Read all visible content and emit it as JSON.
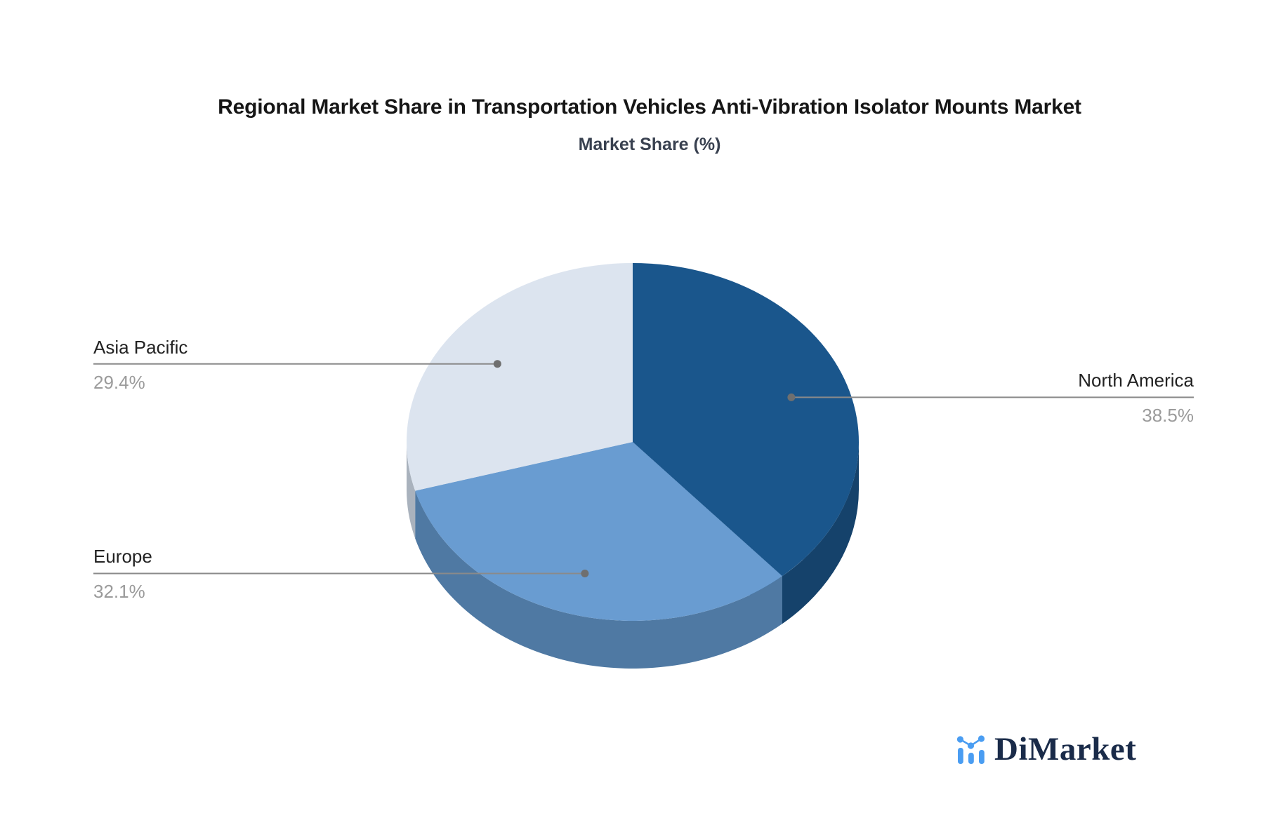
{
  "title": "Regional Market Share in Transportation Vehicles Anti-Vibration Isolator Mounts Market",
  "subtitle": "Market Share (%)",
  "chart_data": {
    "type": "pie",
    "style": "3d",
    "title": "Regional Market Share in Transportation Vehicles Anti-Vibration Isolator Mounts Market",
    "subtitle": "Market Share (%)",
    "unit": "%",
    "direction": "clockwise",
    "start_angle_deg": 0,
    "legend_position": "callout-labels",
    "slices": [
      {
        "label": "North America",
        "value": 38.5,
        "display": "38.5%",
        "color": "#1A568C",
        "side_color": "#15426B"
      },
      {
        "label": "Europe",
        "value": 32.1,
        "display": "32.1%",
        "color": "#699CD1",
        "side_color": "#4F79A3"
      },
      {
        "label": "Asia Pacific",
        "value": 29.4,
        "display": "29.4%",
        "color": "#DCE4EF",
        "side_color": "#A9B2BD"
      }
    ]
  },
  "branding": {
    "logo_text": "DiMarket",
    "logo_icon": "bar-chart-icon",
    "logo_text_color": "#1A2B49",
    "logo_accent_color": "#4A9DF2"
  },
  "colors": {
    "background": "#FFFFFF",
    "leader_line": "#8A8A8A",
    "leader_dot": "#6F6F6F",
    "label_text": "#222222",
    "percent_text": "#9B9B9B",
    "title_text": "#161616",
    "subtitle_text": "#394150"
  }
}
